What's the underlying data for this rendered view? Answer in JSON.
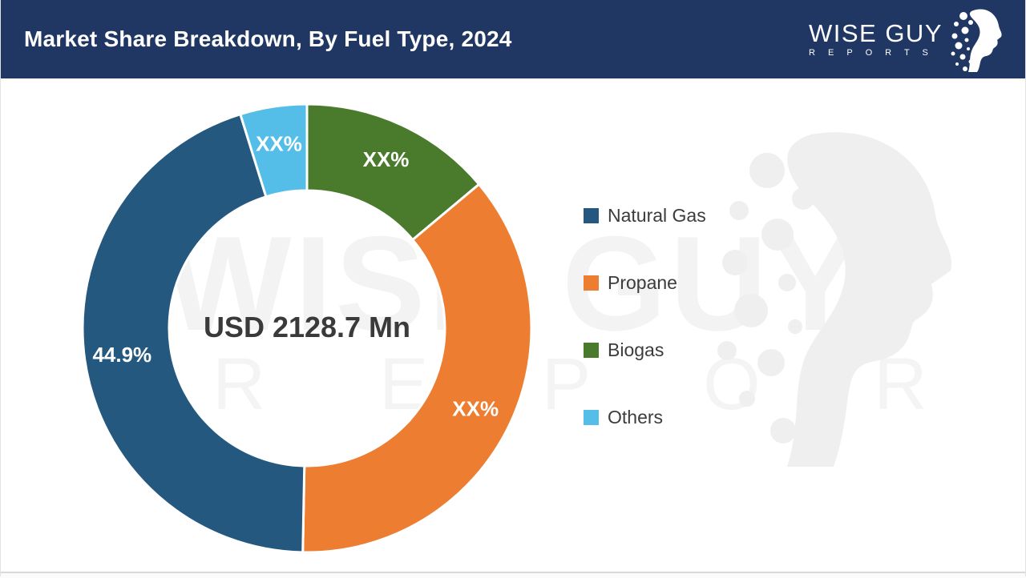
{
  "header": {
    "title": "Market Share Breakdown, By Fuel Type, 2024",
    "logo": {
      "name": "WISE GUY",
      "sub": "R E P O R T S"
    }
  },
  "watermark": {
    "line1": "WISE GUY",
    "line2": "R E P O R T S"
  },
  "chart_data": {
    "type": "pie",
    "subtype": "donut",
    "title": "Market Share Breakdown, By Fuel Type, 2024",
    "center_label": "USD 2128.7 Mn",
    "units": "percent share",
    "direction": "clockwise",
    "start_angle_deg_from_top": 0,
    "slices": [
      {
        "name": "Biogas",
        "label": "XX%",
        "value": 13.9,
        "color": "#4a7b2c"
      },
      {
        "name": "Propane",
        "label": "XX%",
        "value": 36.4,
        "color": "#ed7d31"
      },
      {
        "name": "Natural Gas",
        "label": "44.9%",
        "value": 44.9,
        "color": "#24587f"
      },
      {
        "name": "Others",
        "label": "XX%",
        "value": 4.8,
        "color": "#55bee8"
      }
    ],
    "legend_position": "right"
  },
  "legend": {
    "items": [
      {
        "label": "Natural Gas",
        "color": "#24587f"
      },
      {
        "label": "Propane",
        "color": "#ed7d31"
      },
      {
        "label": "Biogas",
        "color": "#4a7b2c"
      },
      {
        "label": "Others",
        "color": "#55bee8"
      }
    ]
  },
  "colors": {
    "header_bg": "#203763",
    "center_text": "#3a3a3a",
    "legend_text": "#3c3c3c",
    "watermark": "#f3f3f3",
    "divider": "#d9d9d9",
    "slice_gap": "#ffffff"
  }
}
